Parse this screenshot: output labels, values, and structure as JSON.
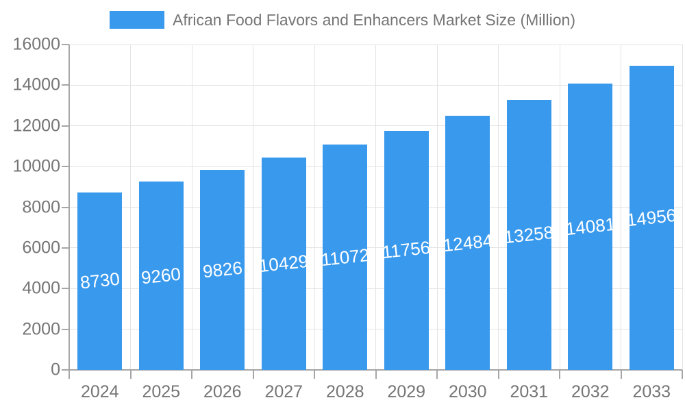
{
  "chart_data": {
    "type": "bar",
    "title": "African Food Flavors and Enhancers Market Size (Million)",
    "categories": [
      "2024",
      "2025",
      "2026",
      "2027",
      "2028",
      "2029",
      "2030",
      "2031",
      "2032",
      "2033"
    ],
    "values": [
      8730,
      9260,
      9826,
      10429,
      11072,
      11756,
      12484,
      13258,
      14081,
      14956
    ],
    "series": [
      {
        "name": "African Food Flavors and Enhancers Market Size (Million)",
        "values": [
          8730,
          9260,
          9826,
          10429,
          11072,
          11756,
          12484,
          13258,
          14081,
          14956
        ]
      }
    ],
    "xlabel": "",
    "ylabel": "",
    "ylim": [
      0,
      16000
    ],
    "ytick_step": 2000,
    "ytick_labels": [
      "0",
      "2000",
      "4000",
      "6000",
      "8000",
      "10000",
      "12000",
      "14000",
      "16000"
    ],
    "grid": true,
    "legend_position": "top-center",
    "value_labels": "inside-center, white, slight tilt",
    "colors": {
      "bar": "#3999ED",
      "value_label": "#FFFFFF",
      "axis_text": "#757575",
      "grid_line": "#E3E3E3",
      "axis_line": "#A6A6A6",
      "background": "#FFFFFF"
    }
  }
}
